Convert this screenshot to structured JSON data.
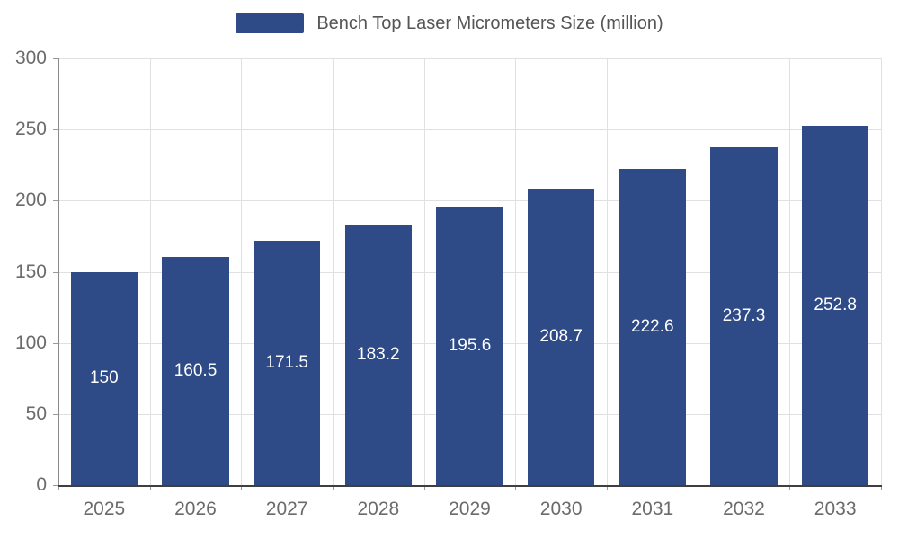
{
  "chart_data": {
    "type": "bar",
    "title": "Bench Top Laser Micrometers Size (million)",
    "categories": [
      "2025",
      "2026",
      "2027",
      "2028",
      "2029",
      "2030",
      "2031",
      "2032",
      "2033"
    ],
    "values": [
      150,
      160.5,
      171.5,
      183.2,
      195.6,
      208.7,
      222.6,
      237.3,
      252.8
    ],
    "value_labels": [
      "150",
      "160.5",
      "171.5",
      "183.2",
      "195.6",
      "208.7",
      "222.6",
      "237.3",
      "252.8"
    ],
    "xlabel": "",
    "ylabel": "",
    "ylim": [
      0,
      300
    ],
    "yticks": [
      0,
      50,
      100,
      150,
      200,
      250,
      300
    ],
    "bar_color": "#2e4a87",
    "value_label_color": "#ffffff",
    "grid": true,
    "legend_position": "top"
  }
}
